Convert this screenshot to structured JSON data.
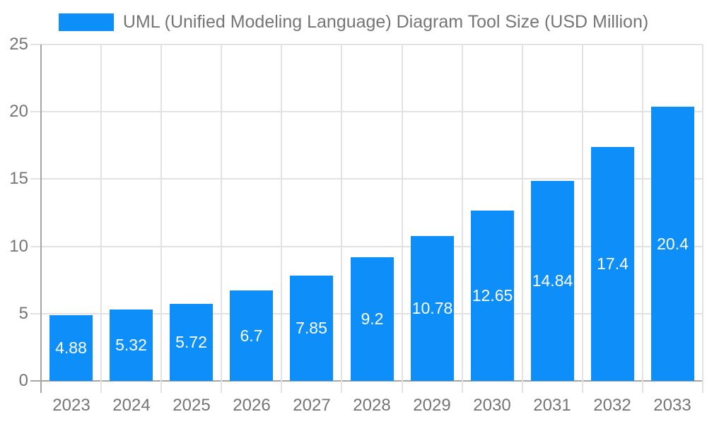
{
  "chart_data": {
    "type": "bar",
    "legend_position": "top",
    "grid": "horizontal and vertical gridlines, light gray",
    "categories": [
      "2023",
      "2024",
      "2025",
      "2026",
      "2027",
      "2028",
      "2029",
      "2030",
      "2031",
      "2032",
      "2033"
    ],
    "series": [
      {
        "name": "UML (Unified Modeling Language) Diagram Tool Size (USD Million)",
        "values": [
          4.88,
          5.32,
          5.72,
          6.7,
          7.85,
          9.2,
          10.78,
          12.65,
          14.84,
          17.4,
          20.4
        ]
      }
    ],
    "value_labels": [
      "4.88",
      "5.32",
      "5.72",
      "6.7",
      "7.85",
      "9.2",
      "10.78",
      "12.65",
      "14.84",
      "17.4",
      "20.4"
    ],
    "xlabel": "",
    "ylabel": "",
    "ylim": [
      0,
      25
    ],
    "yticks": [
      0,
      5,
      10,
      15,
      20,
      25
    ]
  },
  "colors": {
    "bar": "#0d8ef8",
    "grid": "#e2e2e2",
    "axis": "#a6a6a6",
    "tick_label": "#757575",
    "value_label": "#ffffff",
    "background": "#ffffff"
  }
}
